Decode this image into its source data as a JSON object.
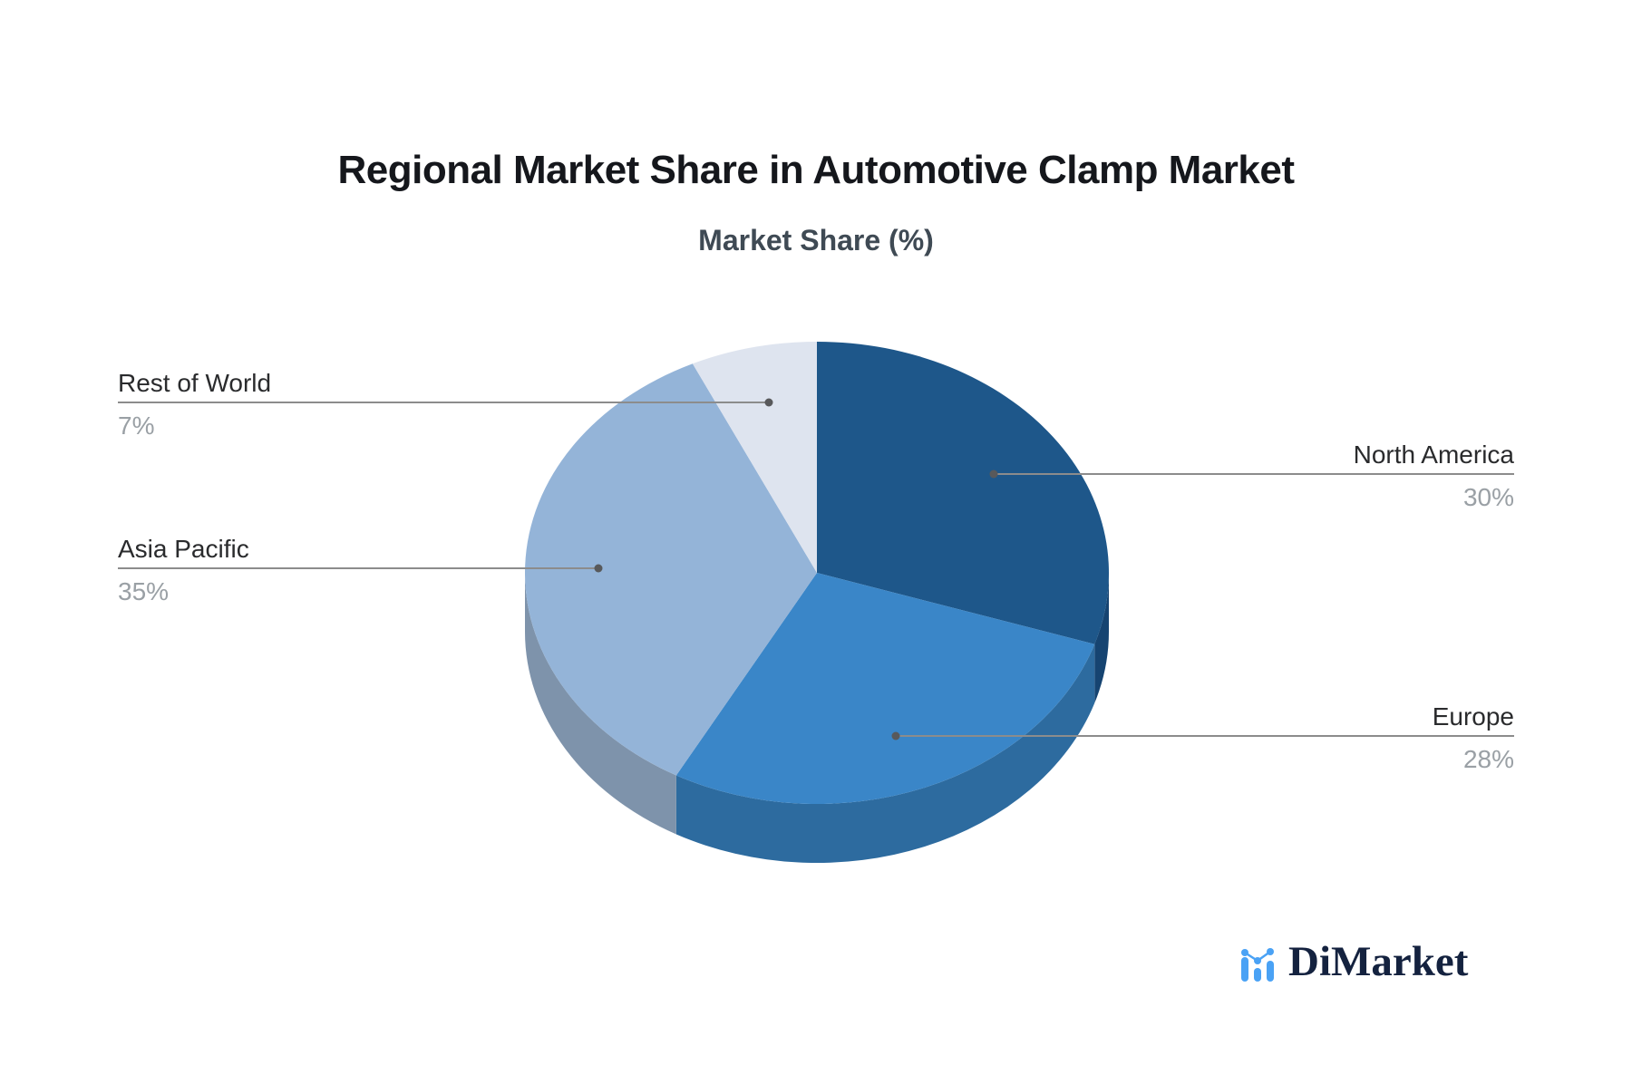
{
  "header": {
    "title": "Regional Market Share in Automotive Clamp Market",
    "subtitle": "Market Share (%)"
  },
  "chart_data": {
    "type": "pie",
    "style": "3d-pie",
    "title": "Regional Market Share in Automotive Clamp Market",
    "subtitle": "Market Share (%)",
    "unit": "%",
    "start_angle_deg": 0,
    "direction": "clockwise",
    "labels": [
      "North America",
      "Europe",
      "Asia Pacific",
      "Rest of World"
    ],
    "values": [
      30,
      28,
      35,
      7
    ],
    "slices": [
      {
        "label": "North America",
        "value": 30,
        "pct_label": "30%",
        "color": "#1e578a",
        "side_color": "#164471"
      },
      {
        "label": "Europe",
        "value": 28,
        "pct_label": "28%",
        "color": "#3a86c8",
        "side_color": "#2d6b9f"
      },
      {
        "label": "Asia Pacific",
        "value": 35,
        "pct_label": "35%",
        "color": "#94b4d8",
        "side_color": "#7e93ab"
      },
      {
        "label": "Rest of World",
        "value": 7,
        "pct_label": "7%",
        "color": "#dee4ef",
        "side_color": "#ccd4e2"
      }
    ],
    "legend_position": "callout-labels"
  },
  "theme": {
    "background": "#ffffff",
    "title_color": "#15171c",
    "subtitle_color": "#3f4a54",
    "label_color": "#2a2b2d",
    "percent_color": "#9aa0a5",
    "leader_line_color": "#8c8c8c",
    "leader_dot_color": "#58595b",
    "logo_accent": "#4aa2f5",
    "logo_text_color": "#14223f"
  },
  "branding": {
    "logo_text": "DiMarket",
    "logo_icon": "bar-line-chart-icon"
  }
}
